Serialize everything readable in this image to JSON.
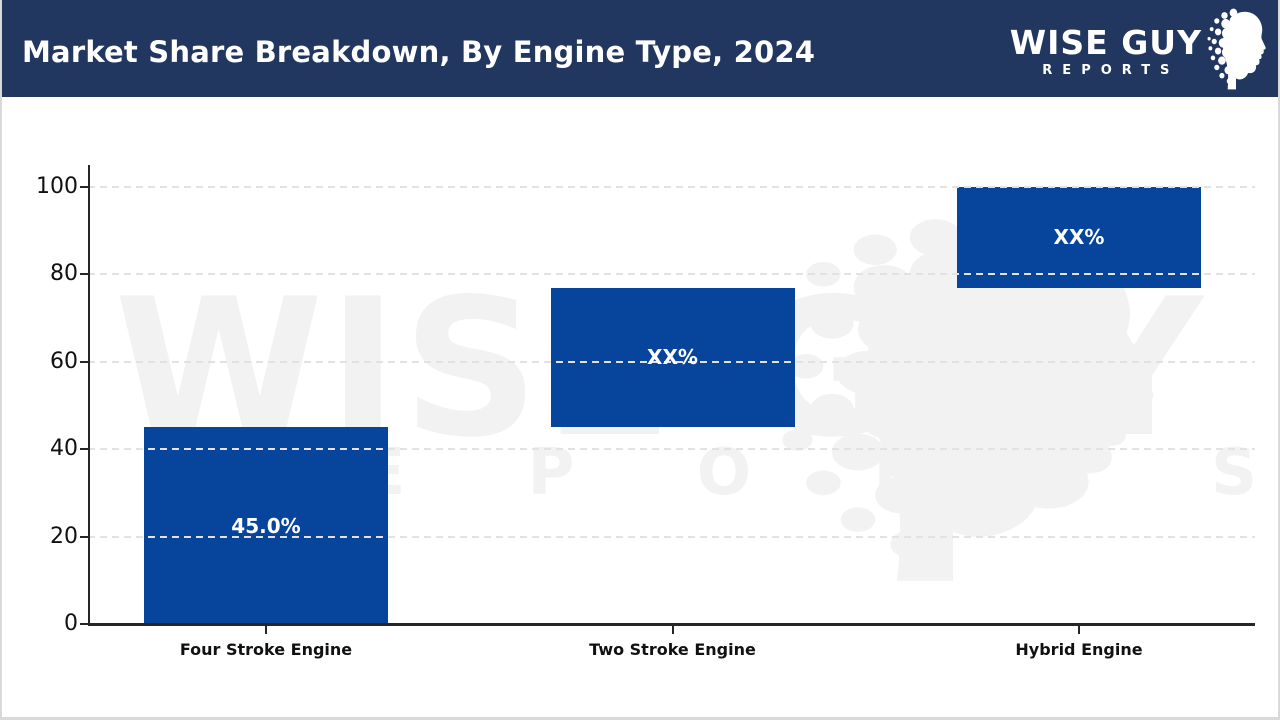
{
  "header": {
    "title": "Market Share Breakdown, By Engine Type, 2024",
    "logo": {
      "wordmark": "WISE GUY",
      "subtext": "REPORTS"
    }
  },
  "watermark": {
    "wordmark": "WISE GUY",
    "subtext": "R E P O R T S"
  },
  "colors": {
    "header_bg": "#223760",
    "bar": "#07459D",
    "grid": "#E2E2E2",
    "axis": "#262626",
    "tick_text": "#111111",
    "bar_label_text": "#FFFFFF",
    "watermark": "#F2F2F2",
    "page_border": "#D9D9D9"
  },
  "chart_data": {
    "type": "bar",
    "subtype": "waterfall",
    "title": "Market Share Breakdown, By Engine Type, 2024",
    "categories": [
      "Four Stroke Engine",
      "Two Stroke Engine",
      "Hybrid Engine"
    ],
    "segments": [
      {
        "category": "Four Stroke Engine",
        "start": 0,
        "end": 45,
        "label": "45.0%"
      },
      {
        "category": "Two Stroke Engine",
        "start": 45,
        "end": 77,
        "label": "XX%"
      },
      {
        "category": "Hybrid Engine",
        "start": 77,
        "end": 100,
        "label": "XX%"
      }
    ],
    "yticks": [
      0,
      20,
      40,
      60,
      80,
      100
    ],
    "ylim": [
      0,
      100
    ],
    "xlabel": "",
    "ylabel": "",
    "grid": "horizontal-dashed",
    "legend": "none"
  }
}
